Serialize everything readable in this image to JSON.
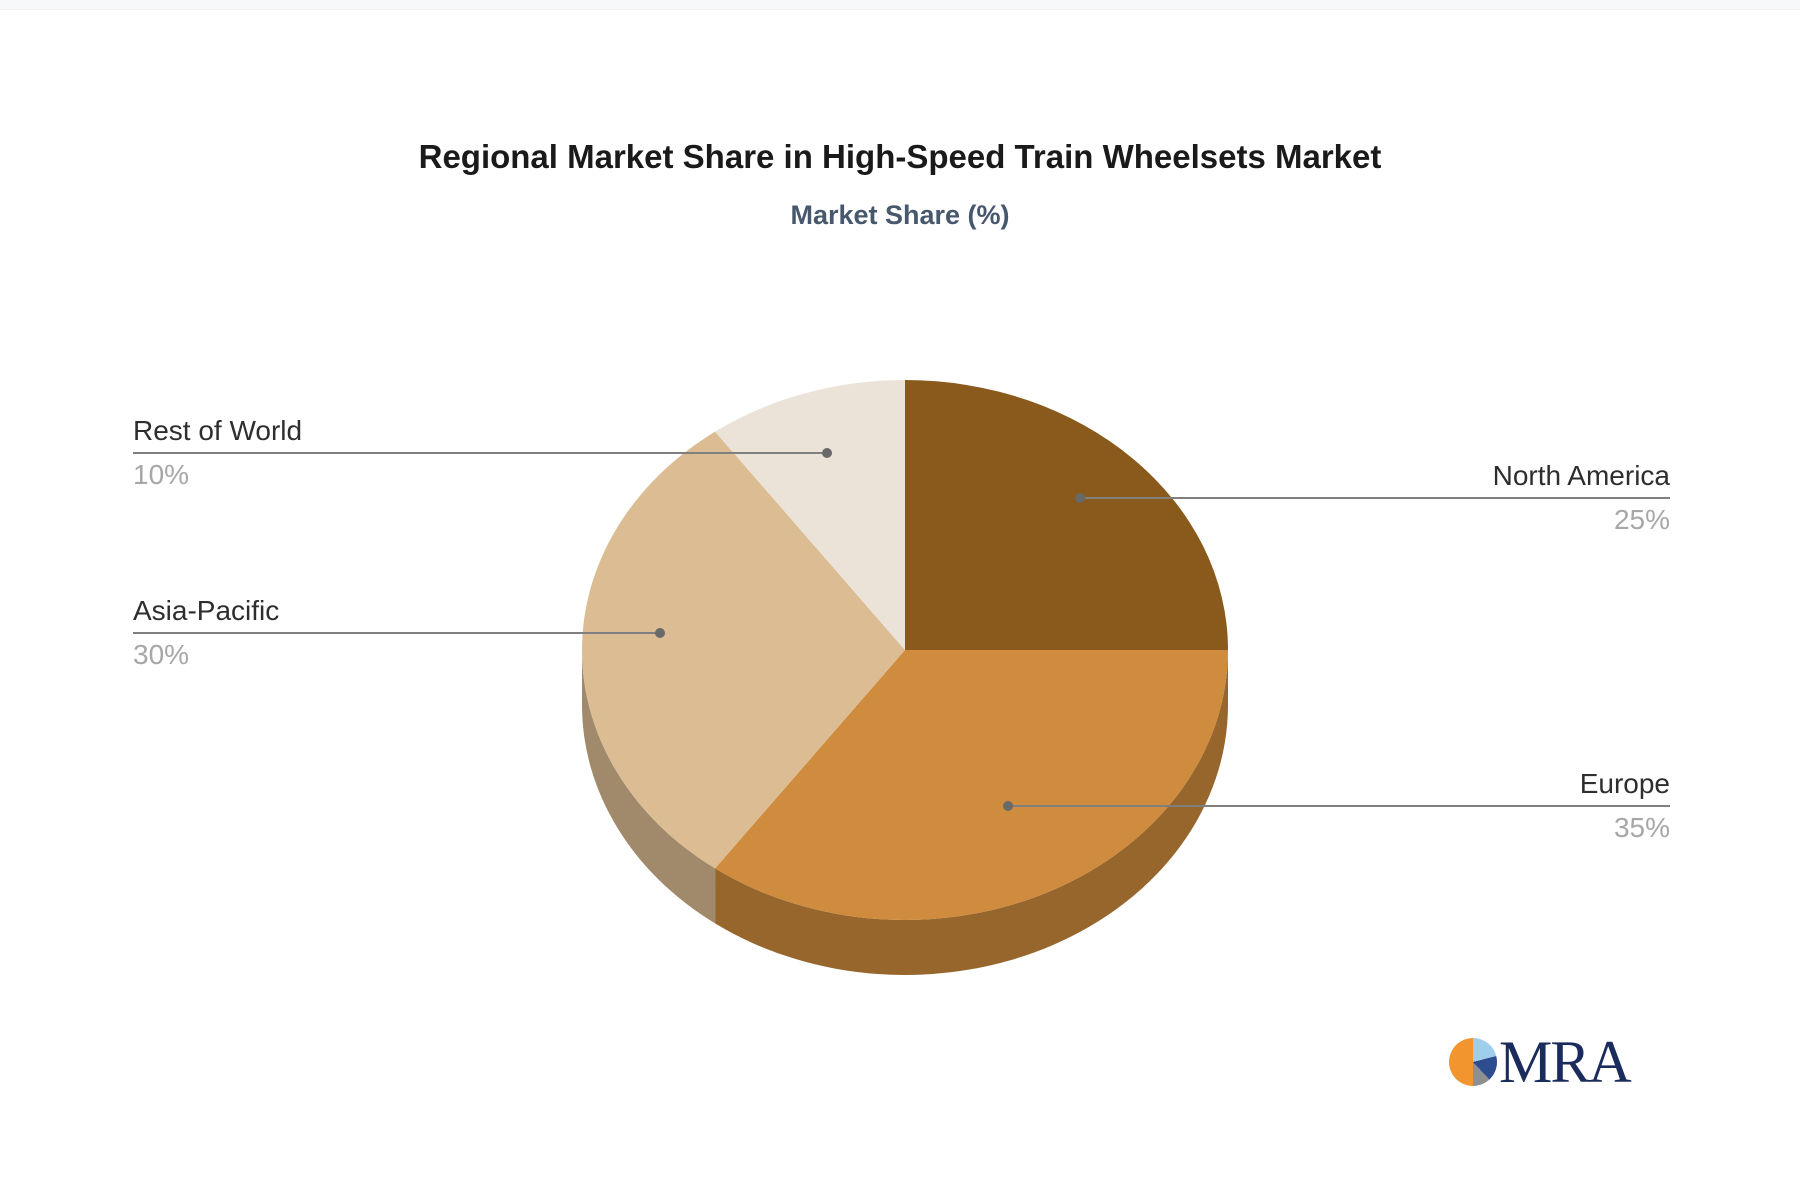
{
  "chart_data": {
    "type": "pie",
    "title": "Regional Market Share in High-Speed Train Wheelsets Market",
    "subtitle": "Market Share (%)",
    "unit": "%",
    "effect": "3d-depth",
    "legend": "none - leader line labels",
    "start_angle": "12 o'clock, clockwise",
    "slices": [
      {
        "label": "North America",
        "value": 25,
        "percent_text": "25%",
        "color": "#8a591c",
        "label_side": "right"
      },
      {
        "label": "Europe",
        "value": 35,
        "percent_text": "35%",
        "color": "#cf8c3e",
        "label_side": "right"
      },
      {
        "label": "Asia-Pacific",
        "value": 30,
        "percent_text": "30%",
        "color": "#dcbd93",
        "label_side": "left"
      },
      {
        "label": "Rest of World",
        "value": 10,
        "percent_text": "10%",
        "color": "#ece3d8",
        "label_side": "left"
      }
    ]
  },
  "branding": {
    "logo_text": "MRA",
    "logo_colors": {
      "orange": "#f2952e",
      "light_blue": "#9fcdec",
      "navy_slice": "#2e4d8e",
      "gray": "#8f8f8f",
      "text_navy": "#1a2c5b"
    }
  },
  "colors": {
    "title": "#1a1a1a",
    "subtitle": "#47586d",
    "label_text": "#2e2e2e",
    "percent_text": "#a7a7a7",
    "leader_line": "#7f7f7f",
    "leader_dot": "#696969",
    "background": "#ffffff"
  }
}
